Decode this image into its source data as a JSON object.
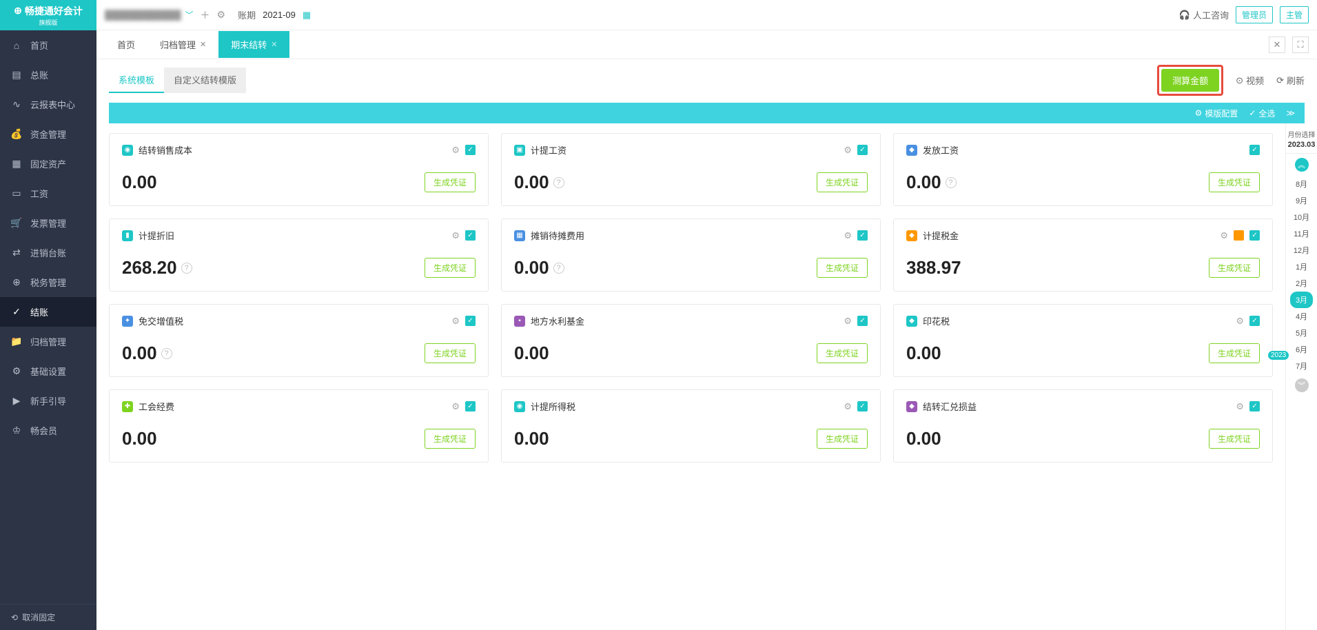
{
  "logo": {
    "main": "畅捷通好会计",
    "sub": "旗舰版"
  },
  "nav": [
    {
      "icon": "⌂",
      "label": "首页"
    },
    {
      "icon": "▤",
      "label": "总账"
    },
    {
      "icon": "∿",
      "label": "云报表中心"
    },
    {
      "icon": "💰",
      "label": "资金管理"
    },
    {
      "icon": "▦",
      "label": "固定资产"
    },
    {
      "icon": "▭",
      "label": "工资"
    },
    {
      "icon": "🛒",
      "label": "发票管理"
    },
    {
      "icon": "⇄",
      "label": "进销台账"
    },
    {
      "icon": "⊕",
      "label": "税务管理"
    },
    {
      "icon": "✓",
      "label": "结账"
    },
    {
      "icon": "📁",
      "label": "归档管理"
    },
    {
      "icon": "⚙",
      "label": "基础设置"
    },
    {
      "icon": "▶",
      "label": "新手引导"
    },
    {
      "icon": "♔",
      "label": "畅会员"
    }
  ],
  "nav_active_index": 9,
  "pin_footer": "取消固定",
  "header": {
    "company": "████████████",
    "period_label": "账期",
    "period_value": "2021-09",
    "consult": "人工咨询",
    "roles": [
      "管理员",
      "主管"
    ]
  },
  "tabs": [
    {
      "label": "首页",
      "closable": false
    },
    {
      "label": "归档管理",
      "closable": true
    },
    {
      "label": "期末结转",
      "closable": true
    }
  ],
  "tabs_active_index": 2,
  "subtabs": [
    {
      "label": "系统模板",
      "active": true
    },
    {
      "label": "自定义结转模版",
      "active": false
    }
  ],
  "actions": {
    "calc": "测算金额",
    "video": "视频",
    "refresh": "刷新"
  },
  "strip": {
    "config": "模版配置",
    "select_all": "全选"
  },
  "gen_label": "生成凭证",
  "cards": [
    {
      "icon_color": "ic-cyan",
      "icon": "◉",
      "title": "结转销售成本",
      "amount": "0.00",
      "help": false,
      "gear": true,
      "chk": true
    },
    {
      "icon_color": "ic-cyan",
      "icon": "▣",
      "title": "计提工资",
      "amount": "0.00",
      "help": true,
      "gear": true,
      "chk": true
    },
    {
      "icon_color": "ic-blue",
      "icon": "◆",
      "title": "发放工资",
      "amount": "0.00",
      "help": true,
      "gear": false,
      "chk": true
    },
    {
      "icon_color": "ic-cyan",
      "icon": "▮",
      "title": "计提折旧",
      "amount": "268.20",
      "help": true,
      "gear": true,
      "chk": true
    },
    {
      "icon_color": "ic-blue",
      "icon": "▦",
      "title": "摊销待摊费用",
      "amount": "0.00",
      "help": true,
      "gear": true,
      "chk": true
    },
    {
      "icon_color": "ic-orange",
      "icon": "◆",
      "title": "计提税金",
      "amount": "388.97",
      "help": false,
      "gear": true,
      "chk": true,
      "badge": true
    },
    {
      "icon_color": "ic-blue",
      "icon": "✦",
      "title": "免交增值税",
      "amount": "0.00",
      "help": true,
      "gear": true,
      "chk": true
    },
    {
      "icon_color": "ic-purple",
      "icon": "▪",
      "title": "地方水利基金",
      "amount": "0.00",
      "help": false,
      "gear": true,
      "chk": true
    },
    {
      "icon_color": "ic-cyan",
      "icon": "◆",
      "title": "印花税",
      "amount": "0.00",
      "help": false,
      "gear": true,
      "chk": true
    },
    {
      "icon_color": "ic-green",
      "icon": "✚",
      "title": "工会经费",
      "amount": "0.00",
      "help": false,
      "gear": true,
      "chk": true
    },
    {
      "icon_color": "ic-cyan",
      "icon": "◉",
      "title": "计提所得税",
      "amount": "0.00",
      "help": false,
      "gear": true,
      "chk": true
    },
    {
      "icon_color": "ic-purple",
      "icon": "◆",
      "title": "结转汇兑损益",
      "amount": "0.00",
      "help": false,
      "gear": true,
      "chk": true
    }
  ],
  "month_panel": {
    "title": "月份选择",
    "current": "2023.03",
    "months": [
      "8月",
      "9月",
      "10月",
      "11月",
      "12月",
      "1月",
      "2月",
      "3月",
      "4月",
      "5月",
      "6月",
      "7月"
    ],
    "active_index": 7,
    "year_badge": "2023"
  }
}
